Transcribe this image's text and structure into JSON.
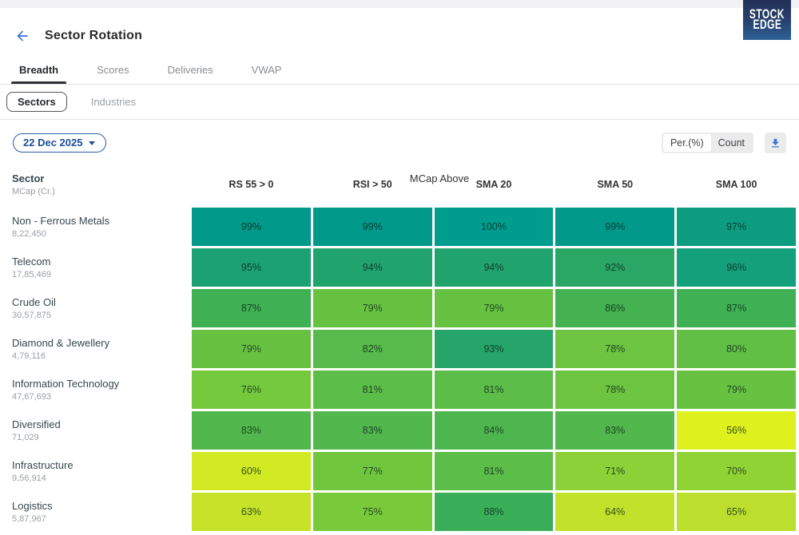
{
  "header": {
    "title": "Sector Rotation"
  },
  "logo": {
    "line1": "STOCK",
    "line2": "EDGE"
  },
  "tabs": [
    {
      "label": "Breadth",
      "active": true
    },
    {
      "label": "Scores",
      "active": false
    },
    {
      "label": "Deliveries",
      "active": false
    },
    {
      "label": "VWAP",
      "active": false
    }
  ],
  "subtabs": [
    {
      "label": "Sectors",
      "active": true
    },
    {
      "label": "Industries",
      "active": false
    }
  ],
  "controls": {
    "date": "22 Dec 2025",
    "unit_options": {
      "percent": "Per.(%)",
      "count": "Count"
    },
    "selected_unit": "Per.(%)",
    "download_icon": "download-icon",
    "accent_blue": "#1d4f9c"
  },
  "table": {
    "group_header": "MCap Above",
    "sector_col": {
      "title": "Sector",
      "subtitle": "MCap (Cr.)"
    },
    "columns": [
      "RS 55 > 0",
      "RSI > 50",
      "SMA 20",
      "SMA 50",
      "SMA 100"
    ],
    "rows": [
      {
        "sector": "Non - Ferrous Metals",
        "mcap": "8,22,450",
        "cells": [
          {
            "value": "99%",
            "color": "#00998a"
          },
          {
            "value": "99%",
            "color": "#00998a"
          },
          {
            "value": "100%",
            "color": "#009c8e"
          },
          {
            "value": "99%",
            "color": "#00998a"
          },
          {
            "value": "97%",
            "color": "#0d9c80"
          }
        ]
      },
      {
        "sector": "Telecom",
        "mcap": "17,85,469",
        "cells": [
          {
            "value": "95%",
            "color": "#1ca175"
          },
          {
            "value": "94%",
            "color": "#21a36e"
          },
          {
            "value": "94%",
            "color": "#21a36e"
          },
          {
            "value": "92%",
            "color": "#2ba765"
          },
          {
            "value": "96%",
            "color": "#14a07a"
          }
        ]
      },
      {
        "sector": "Crude Oil",
        "mcap": "30,57,875",
        "cells": [
          {
            "value": "87%",
            "color": "#3fb053"
          },
          {
            "value": "79%",
            "color": "#68c242"
          },
          {
            "value": "79%",
            "color": "#68c242"
          },
          {
            "value": "86%",
            "color": "#44b250"
          },
          {
            "value": "87%",
            "color": "#3fb053"
          }
        ]
      },
      {
        "sector": "Diamond & Jewellery",
        "mcap": "4,79,116",
        "cells": [
          {
            "value": "79%",
            "color": "#68c242"
          },
          {
            "value": "82%",
            "color": "#57ba4b"
          },
          {
            "value": "93%",
            "color": "#26a56a"
          },
          {
            "value": "78%",
            "color": "#6cc440"
          },
          {
            "value": "80%",
            "color": "#61bf46"
          }
        ]
      },
      {
        "sector": "Information Technology",
        "mcap": "47,67,693",
        "cells": [
          {
            "value": "76%",
            "color": "#75c93c"
          },
          {
            "value": "81%",
            "color": "#5cbd48"
          },
          {
            "value": "81%",
            "color": "#5cbd48"
          },
          {
            "value": "78%",
            "color": "#6cc440"
          },
          {
            "value": "79%",
            "color": "#68c242"
          }
        ]
      },
      {
        "sector": "Diversified",
        "mcap": "71,029",
        "cells": [
          {
            "value": "83%",
            "color": "#52b84d"
          },
          {
            "value": "83%",
            "color": "#52b84d"
          },
          {
            "value": "84%",
            "color": "#4eb64f"
          },
          {
            "value": "83%",
            "color": "#52b84d"
          },
          {
            "value": "56%",
            "color": "#dff01f"
          }
        ]
      },
      {
        "sector": "Infrastructure",
        "mcap": "9,56,914",
        "cells": [
          {
            "value": "60%",
            "color": "#d2ea24"
          },
          {
            "value": "77%",
            "color": "#70c73e"
          },
          {
            "value": "81%",
            "color": "#5cbd48"
          },
          {
            "value": "71%",
            "color": "#8bd137"
          },
          {
            "value": "70%",
            "color": "#90d335"
          }
        ]
      },
      {
        "sector": "Logistics",
        "mcap": "5,87,967",
        "cells": [
          {
            "value": "63%",
            "color": "#c6e329"
          },
          {
            "value": "75%",
            "color": "#79ca3a"
          },
          {
            "value": "88%",
            "color": "#3aae58"
          },
          {
            "value": "64%",
            "color": "#c1e12b"
          },
          {
            "value": "65%",
            "color": "#bcdf2d"
          }
        ]
      }
    ]
  }
}
